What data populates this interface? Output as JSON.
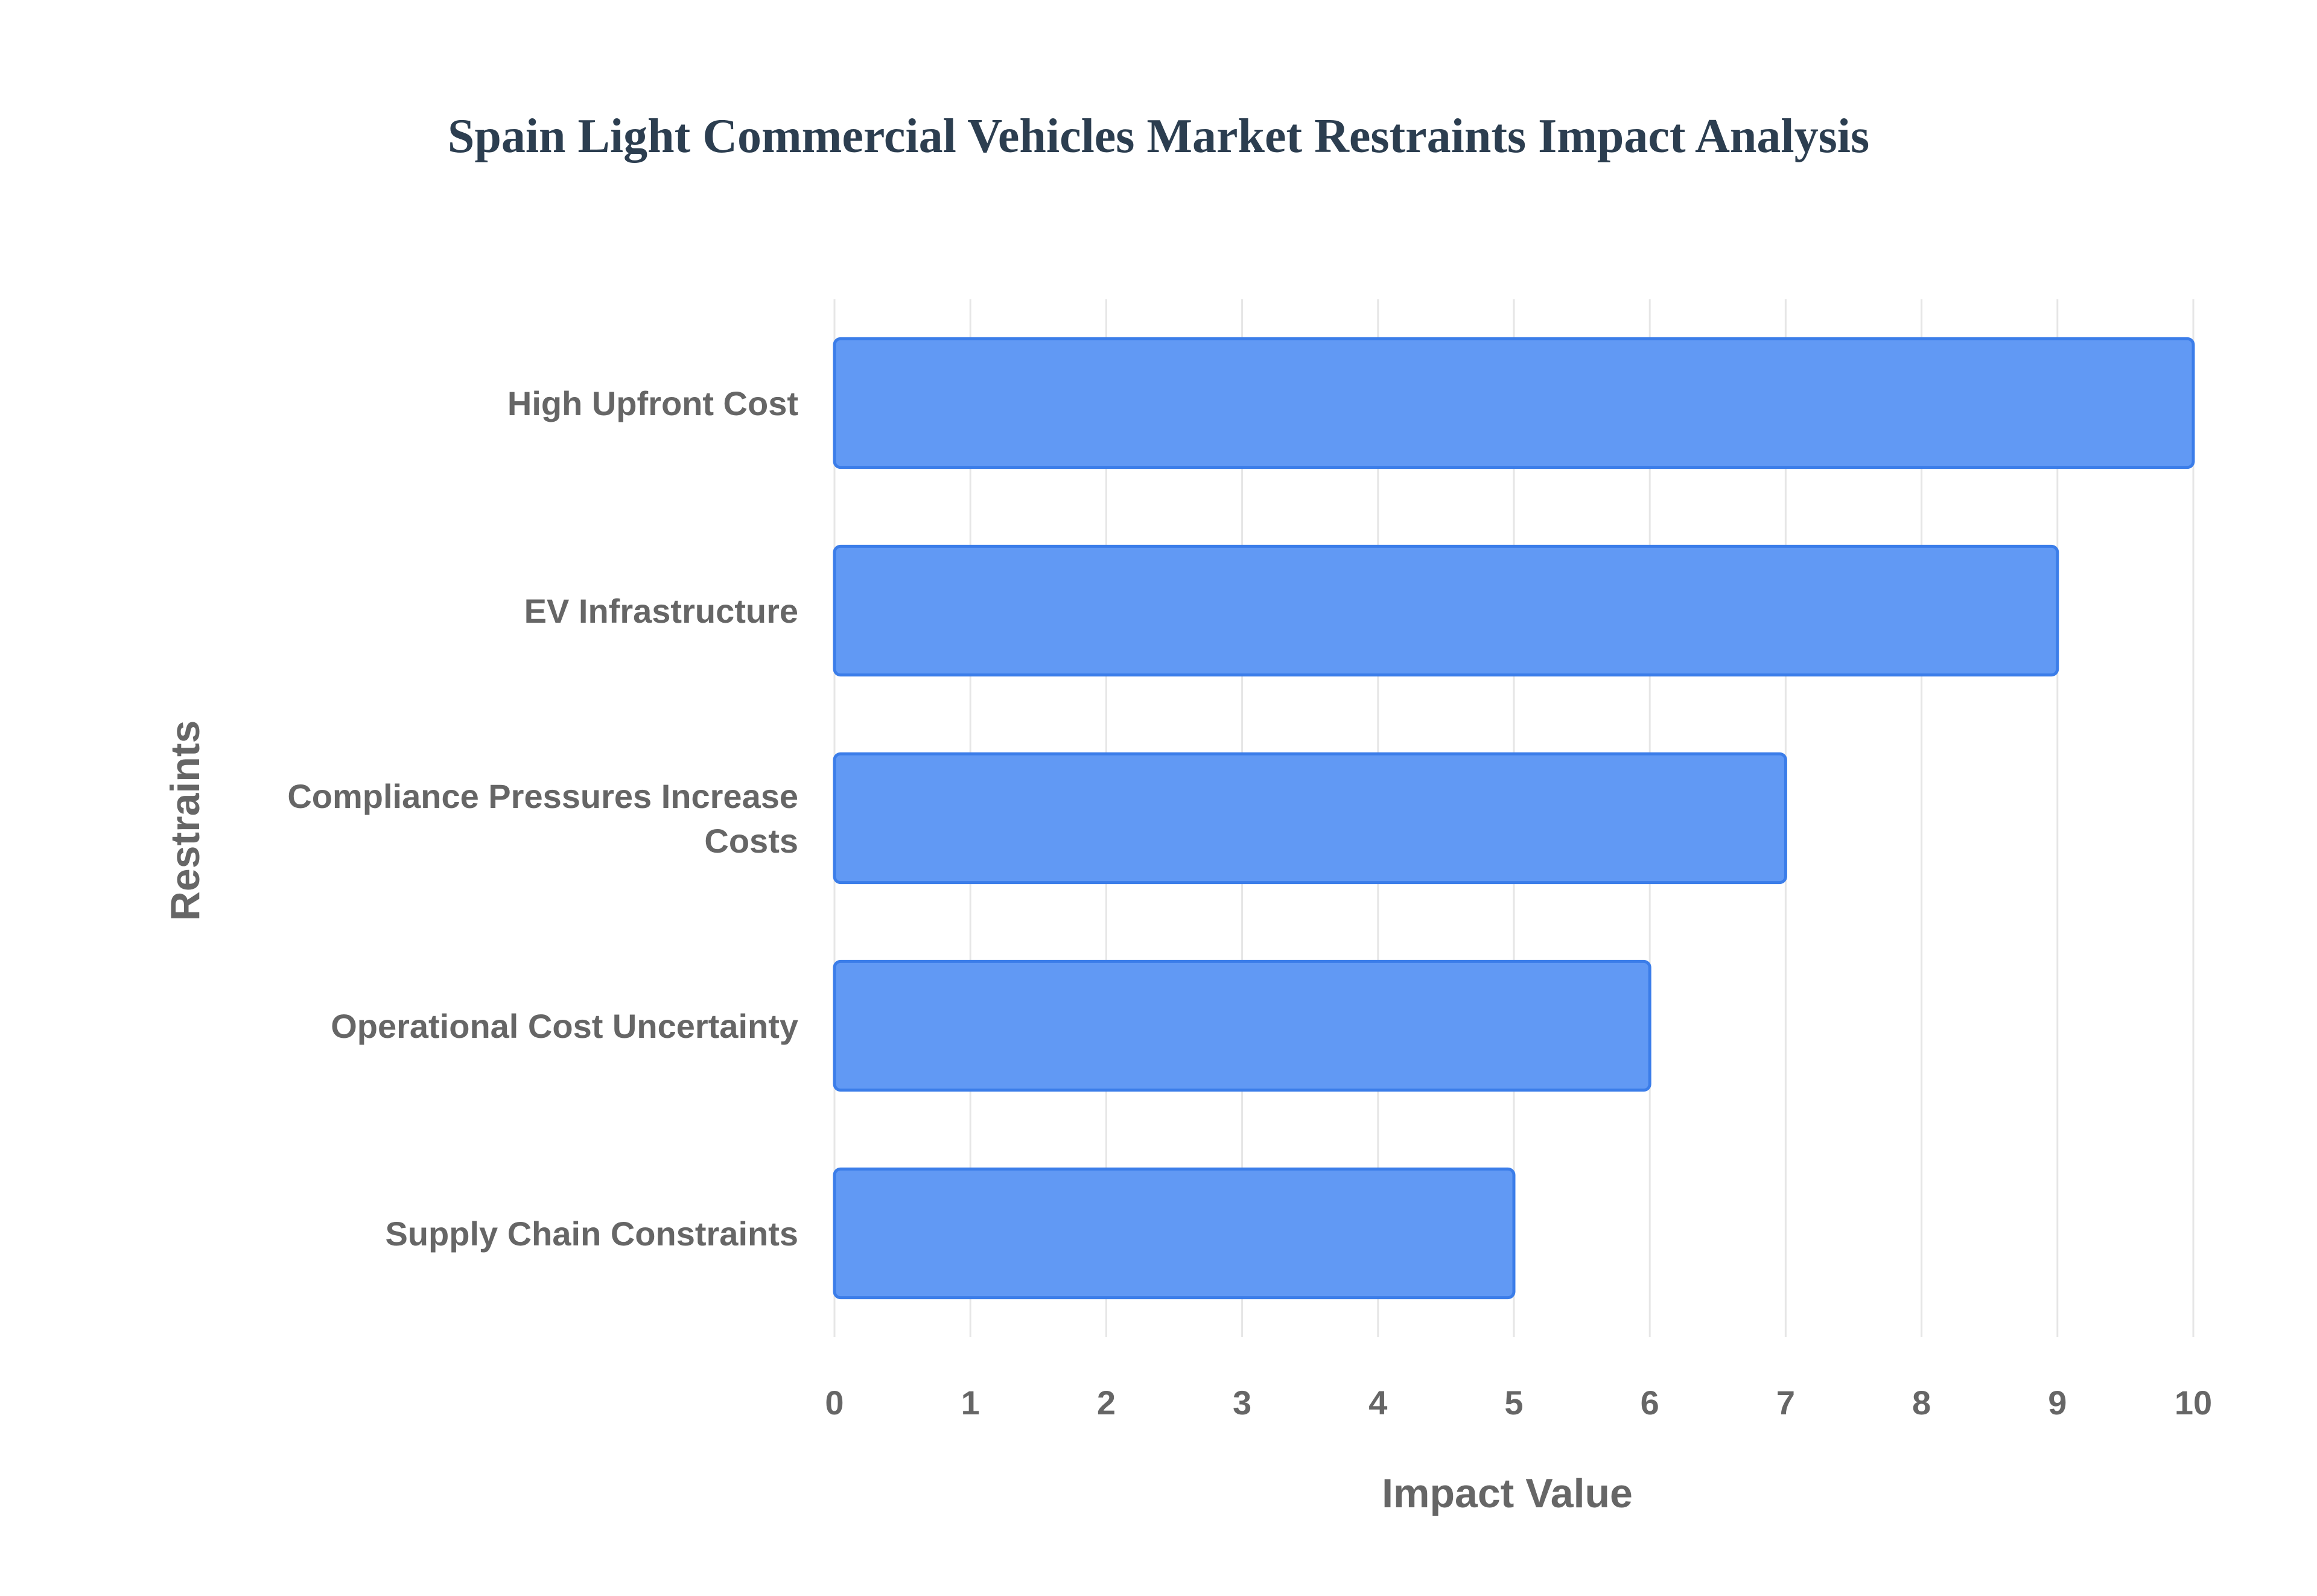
{
  "chart_data": {
    "type": "bar",
    "orientation": "horizontal",
    "title": "Spain Light Commercial Vehicles Market Restraints Impact Analysis",
    "xlabel": "Impact Value",
    "ylabel": "Restraints",
    "categories": [
      "High Upfront Cost",
      "EV Infrastructure",
      "Compliance Pressures Increase Costs",
      "Operational Cost Uncertainty",
      "Supply Chain Constraints"
    ],
    "values": [
      10,
      9,
      7,
      6,
      5
    ],
    "xlim": [
      0,
      10
    ],
    "xticks": [
      "0",
      "1",
      "2",
      "3",
      "4",
      "5",
      "6",
      "7",
      "8",
      "9",
      "10"
    ],
    "grid": true,
    "legend": "none",
    "colors": {
      "bar_fill": "#6199f4",
      "bar_stroke": "#3b7de9",
      "title": "#2c3e50",
      "axis_text": "#666666",
      "grid": "#e6e6e6"
    }
  }
}
